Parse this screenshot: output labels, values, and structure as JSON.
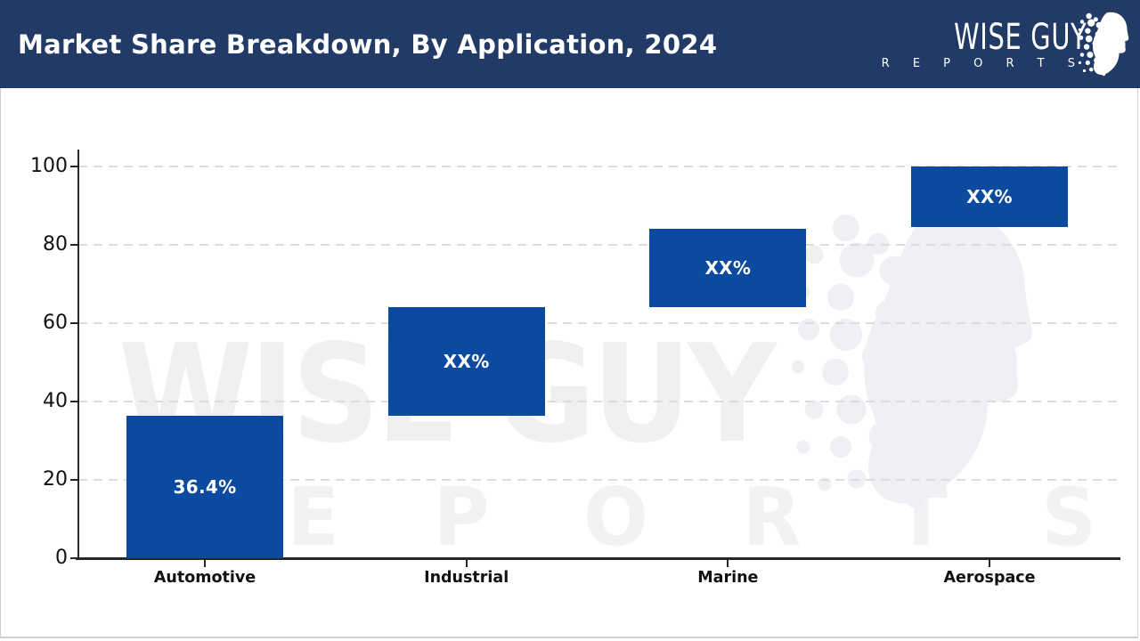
{
  "header": {
    "title": "Market Share Breakdown, By Application, 2024",
    "logo": {
      "name": "WISE GUY",
      "tagline": "R E P O R T S"
    }
  },
  "watermark": {
    "line1": "WISE GUY",
    "line2": "R E P O R T S"
  },
  "chart_data": {
    "type": "bar",
    "subtype": "floating-waterfall",
    "title": "Market Share Breakdown, By Application, 2024",
    "categories": [
      "Automotive",
      "Industrial",
      "Marine",
      "Aerospace"
    ],
    "series": [
      {
        "name": "Market share (%)",
        "segments": [
          {
            "category": "Automotive",
            "start": 0,
            "end": 36.4,
            "label": "36.4%"
          },
          {
            "category": "Industrial",
            "start": 36.4,
            "end": 64,
            "label": "XX%"
          },
          {
            "category": "Marine",
            "start": 64,
            "end": 84,
            "label": "XX%"
          },
          {
            "category": "Aerospace",
            "start": 84.5,
            "end": 100,
            "label": "XX%"
          }
        ]
      }
    ],
    "xlabel": "",
    "ylabel": "",
    "ylim": [
      0,
      100
    ],
    "yticks": [
      0,
      20,
      40,
      60,
      80,
      100
    ],
    "grid": "horizontal-dashed",
    "legend": "none",
    "bar_color": "#0b4a9e",
    "bar_label_color": "#ffffff",
    "axis_color": "#262626",
    "grid_color": "#dcdcdc"
  },
  "colors": {
    "header_bg": "#213a66",
    "header_text": "#ffffff",
    "canvas_bg": "#ffffff",
    "watermark": "#f0f0f3",
    "border": "#cfcfcf"
  }
}
